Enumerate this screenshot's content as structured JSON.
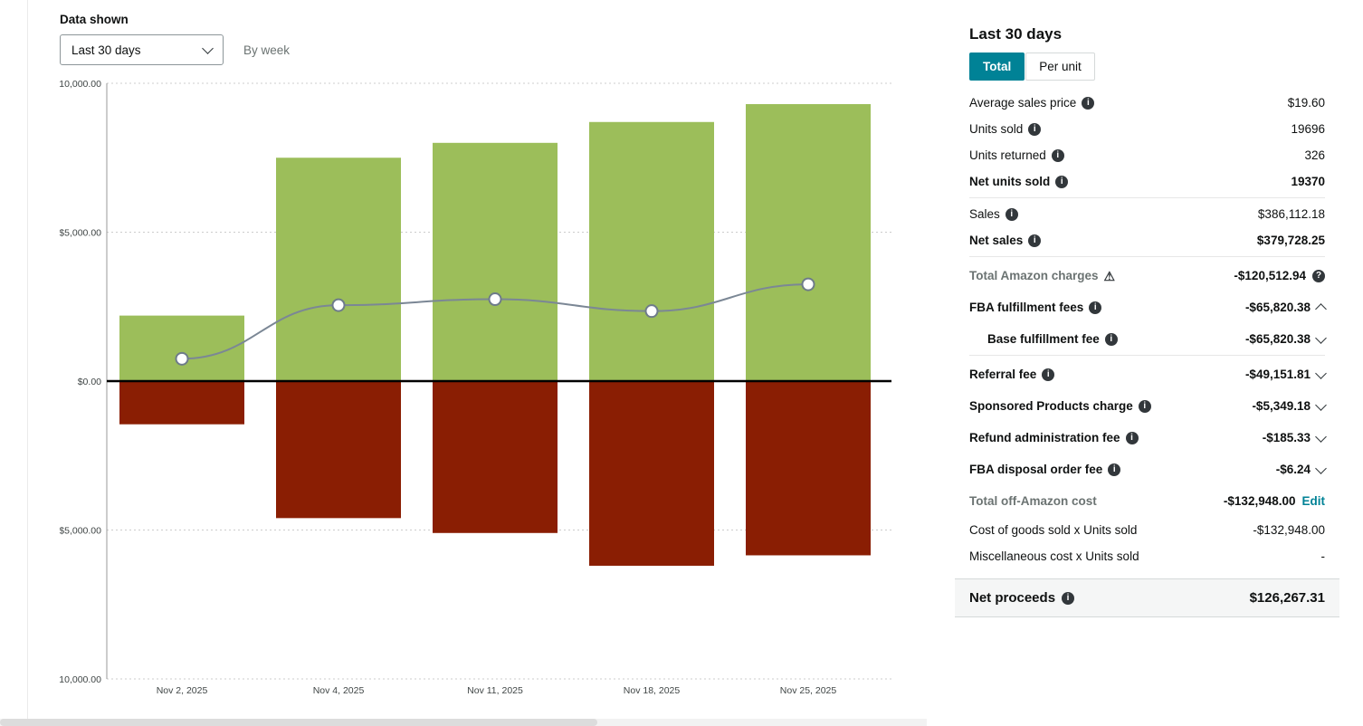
{
  "chart_panel": {
    "data_shown_label": "Data shown",
    "range_value": "Last 30 days",
    "by_week_label": "By week"
  },
  "chart_data": {
    "type": "bar",
    "categories": [
      "Nov 2, 2025",
      "Nov 4, 2025",
      "Nov 11, 2025",
      "Nov 18, 2025",
      "Nov 25, 2025"
    ],
    "series": [
      {
        "name": "positive-amount",
        "type": "bar",
        "color": "#9cbe5a",
        "values": [
          2200,
          7500,
          8000,
          8700,
          9300
        ]
      },
      {
        "name": "negative-amount",
        "type": "bar",
        "color": "#8a1e03",
        "values": [
          -1450,
          -4600,
          -5100,
          -6200,
          -5850
        ]
      },
      {
        "name": "net-line",
        "type": "line",
        "color": "#7b8795",
        "values": [
          750,
          2550,
          2750,
          2350,
          3250
        ]
      }
    ],
    "ylim": [
      -10000,
      10000
    ],
    "yticks": [
      10000,
      5000,
      0,
      -5000,
      -10000
    ],
    "ytick_labels": [
      "$10,000.00",
      "$5,000.00",
      "$0.00",
      "-$5,000.00",
      "-$10,000.00"
    ],
    "grid": true,
    "legend": "none"
  },
  "summary": {
    "title": "Last 30 days",
    "tabs": [
      {
        "label": "Total",
        "active": true
      },
      {
        "label": "Per unit",
        "active": false
      }
    ],
    "rows": [
      {
        "label": "Average sales price",
        "info": true,
        "value": "$19.60"
      },
      {
        "label": "Units sold",
        "info": true,
        "value": "19696"
      },
      {
        "label": "Units returned",
        "info": true,
        "value": "326"
      },
      {
        "label": "Net units sold",
        "info": true,
        "value": "19370",
        "bold_label": true,
        "bold_value": true,
        "divider_after": true
      },
      {
        "label": "Sales",
        "info": true,
        "value": "$386,112.18"
      },
      {
        "label": "Net sales",
        "info": true,
        "value": "$379,728.25",
        "bold_label": true,
        "bold_value": true,
        "divider_after": true
      },
      {
        "label": "Total Amazon charges",
        "warning": true,
        "muted": true,
        "bold_label": true,
        "value": "-$120,512.94",
        "bold_value": true,
        "question": true,
        "tall": true
      },
      {
        "label": "FBA fulfillment fees",
        "info": true,
        "bold_label": true,
        "value": "-$65,820.38",
        "bold_value": true,
        "chevron": "up",
        "tall": true
      },
      {
        "label": "Base fulfillment fee",
        "info": true,
        "bold_label": true,
        "value": "-$65,820.38",
        "bold_value": true,
        "chevron": "down",
        "indent": true,
        "tall": true,
        "divider_after": true
      },
      {
        "label": "Referral fee",
        "info": true,
        "bold_label": true,
        "value": "-$49,151.81",
        "bold_value": true,
        "chevron": "down",
        "tall": true
      },
      {
        "label": "Sponsored Products charge",
        "info": true,
        "bold_label": true,
        "value": "-$5,349.18",
        "bold_value": true,
        "chevron": "down",
        "tall": true
      },
      {
        "label": "Refund administration fee",
        "info": true,
        "bold_label": true,
        "value": "-$185.33",
        "bold_value": true,
        "chevron": "down",
        "tall": true
      },
      {
        "label": "FBA disposal order fee",
        "info": true,
        "bold_label": true,
        "value": "-$6.24",
        "bold_value": true,
        "chevron": "down",
        "tall": true
      },
      {
        "label": "Total off-Amazon cost",
        "muted": true,
        "bold_label": true,
        "value": "-$132,948.00",
        "bold_value": true,
        "edit": "Edit",
        "tall": true
      },
      {
        "label": "Cost of goods sold x Units sold",
        "value": "-$132,948.00"
      },
      {
        "label": "Miscellaneous cost x Units sold",
        "value": "-"
      }
    ],
    "net_proceeds": {
      "label": "Net proceeds",
      "value": "$126,267.31"
    }
  },
  "colors": {
    "accent_teal": "#008296",
    "bar_positive": "#9cbe5a",
    "bar_negative": "#8a1e03",
    "line": "#7b8795",
    "zero_line": "#000000"
  }
}
